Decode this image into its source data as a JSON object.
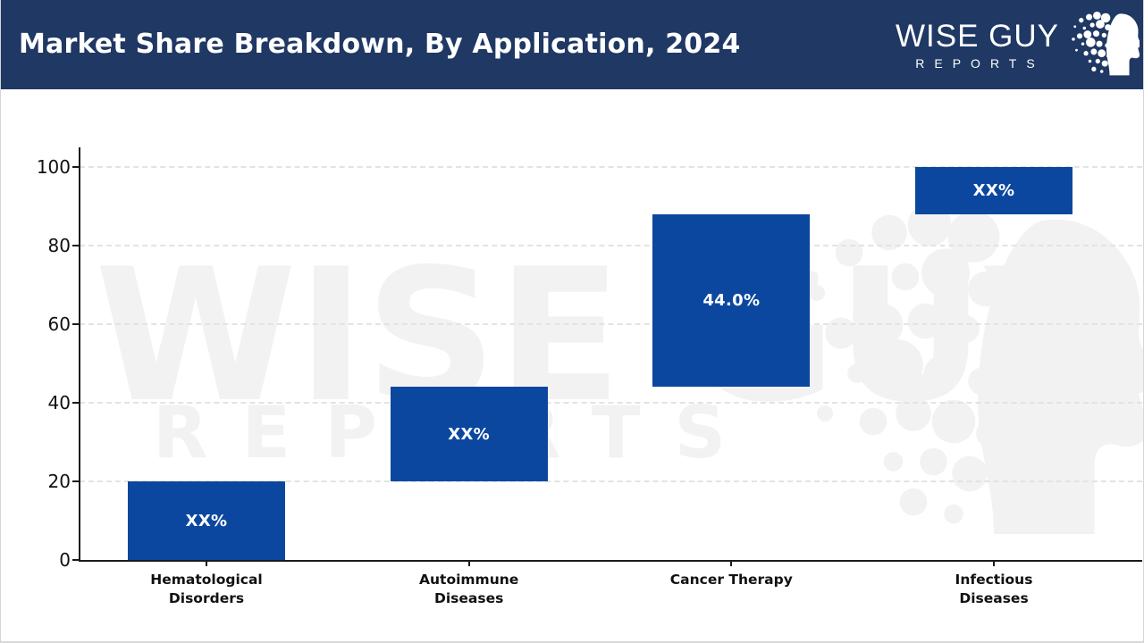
{
  "header": {
    "title": "Market Share Breakdown, By Application, 2024",
    "bg_color": "#1f3864",
    "brand": {
      "name": "WISE GUY",
      "tagline": "REPORTS"
    }
  },
  "watermark": {
    "line1": "WISE GUY",
    "line2": "REPORTS"
  },
  "chart_data": {
    "type": "bar",
    "variant": "waterfall",
    "title": "Market Share Breakdown, By Application, 2024",
    "categories": [
      "Hematological Disorders",
      "Autoimmune Diseases",
      "Cancer Therapy",
      "Infectious Diseases"
    ],
    "category_lines": [
      [
        "Hematological",
        "Disorders"
      ],
      [
        "Autoimmune",
        "Diseases"
      ],
      [
        "Cancer Therapy"
      ],
      [
        "Infectious",
        "Diseases"
      ]
    ],
    "segments": [
      {
        "category": "Hematological Disorders",
        "start": 0,
        "end": 20,
        "label": "XX%"
      },
      {
        "category": "Autoimmune Diseases",
        "start": 20,
        "end": 44,
        "label": "XX%"
      },
      {
        "category": "Cancer Therapy",
        "start": 44,
        "end": 88,
        "label": "44.0%"
      },
      {
        "category": "Infectious Diseases",
        "start": 88,
        "end": 100,
        "label": "XX%"
      }
    ],
    "ylim": [
      0,
      100
    ],
    "yticks": [
      0,
      20,
      40,
      60,
      80,
      100
    ],
    "grid": {
      "axis": "y",
      "style": "dashed"
    },
    "legend": "none",
    "xlabel": "",
    "ylabel": "",
    "colors": {
      "bar": "#0c479f",
      "bar_label": "#ffffff",
      "axis": "#1a1a1a",
      "grid": "#e3e3e3",
      "tick_label": "#111111",
      "header_bg": "#1f3864",
      "watermark": "#f2f2f2"
    }
  }
}
